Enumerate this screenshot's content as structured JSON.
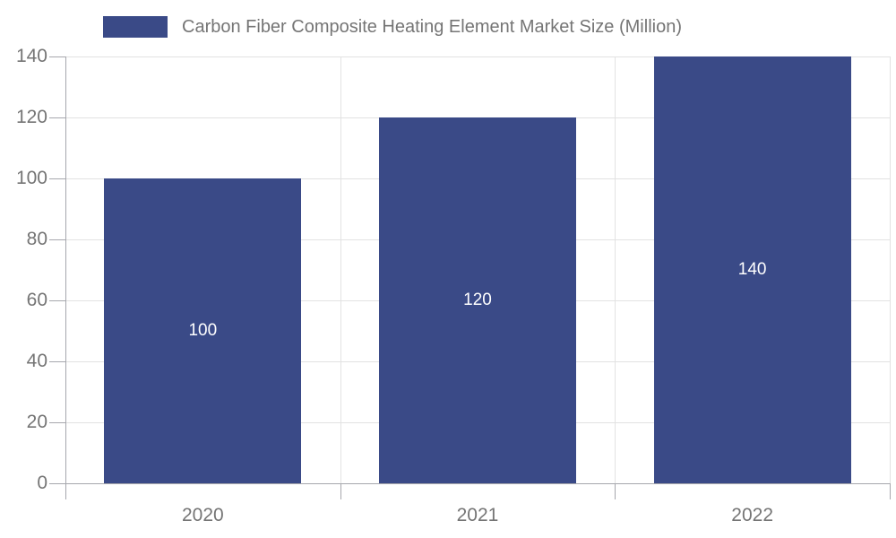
{
  "legend": {
    "label": "Carbon Fiber Composite Heating Element Market Size (Million)"
  },
  "chart_data": {
    "type": "bar",
    "title": "",
    "xlabel": "",
    "ylabel": "",
    "categories": [
      "2020",
      "2021",
      "2022"
    ],
    "series": [
      {
        "name": "Carbon Fiber Composite Heating Element Market Size (Million)",
        "values": [
          100,
          120,
          140
        ]
      }
    ],
    "value_labels": [
      "100",
      "120",
      "140"
    ],
    "ylim": [
      0,
      140
    ],
    "yticks": [
      0,
      20,
      40,
      60,
      80,
      100,
      120,
      140
    ],
    "grid": true,
    "legend_position": "top"
  },
  "colors": {
    "bar": "#3a4a87",
    "axis": "#a6a7ad",
    "grid": "#e2e2e2",
    "text": "#757575",
    "bar_label": "#ffffff"
  }
}
